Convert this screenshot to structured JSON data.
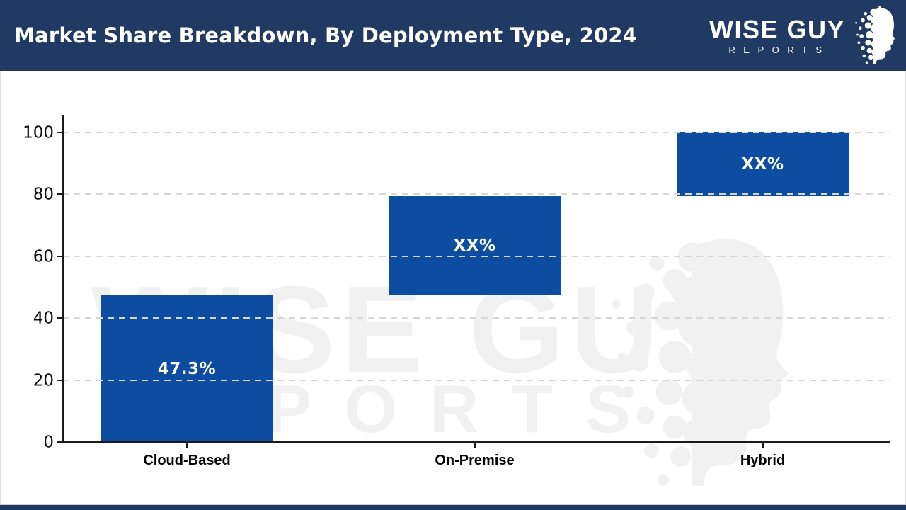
{
  "header": {
    "title": "Market Share Breakdown, By Deployment Type, 2024",
    "bg_color": "#213A63",
    "logo": {
      "line1": "WISE GUY",
      "line2": "REPORTS"
    }
  },
  "watermark": {
    "line1": "WISE GUY",
    "line2": "REPORTS"
  },
  "chart_data": {
    "type": "bar",
    "subtype": "waterfall",
    "title": "Market Share Breakdown, By Deployment Type, 2024",
    "categories": [
      "Cloud-Based",
      "On-Premise",
      "Hybrid"
    ],
    "segments": [
      {
        "start": 0,
        "end": 47.3
      },
      {
        "start": 47.3,
        "end": 79.3
      },
      {
        "start": 79.3,
        "end": 100
      }
    ],
    "values": [
      47.3,
      32.0,
      20.7
    ],
    "bar_labels": [
      "47.3%",
      "XX%",
      "XX%"
    ],
    "bar_color": "#0C4DA2",
    "label_color": "#FFFFFF",
    "yticks": [
      0,
      20,
      40,
      60,
      80,
      100
    ],
    "ylim": [
      0,
      105
    ],
    "xlabel": "",
    "ylabel": "",
    "grid": "horizontal dashed",
    "legend": "none"
  },
  "footer": {
    "bg_color": "#213A63"
  }
}
